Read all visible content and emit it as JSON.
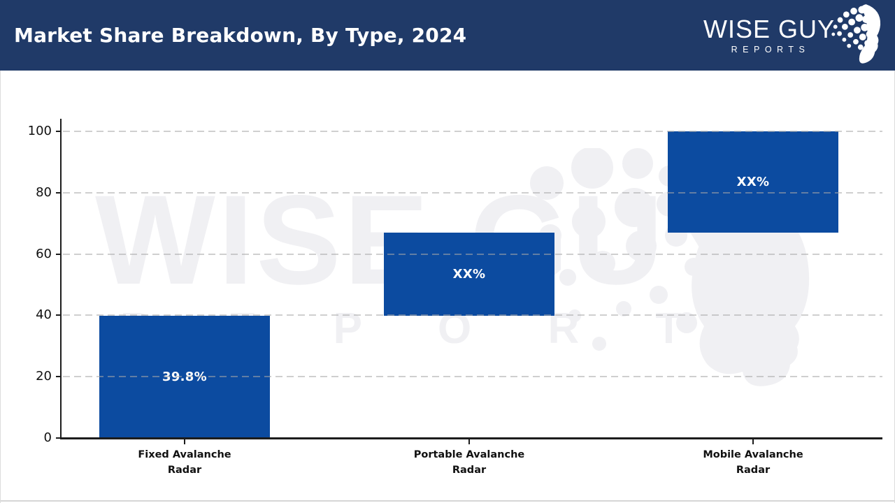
{
  "header": {
    "title": "Market Share Breakdown, By Type, 2024",
    "logo": {
      "brand_line1": "WISE GUY",
      "brand_line2": "REPORTS"
    }
  },
  "watermark": {
    "line1": "WISE GUY",
    "line2": "R E P O R T S"
  },
  "colors": {
    "header_bg": "#203A68",
    "bar_fill": "#0C4BA0",
    "bar_label_text": "#FFFFFF",
    "gridline": "#D8D8D8",
    "axis_line": "#1C1C1C",
    "tick_label_text": "#111111",
    "watermark": "#F0F0F3"
  },
  "chart_data": {
    "type": "bar",
    "subtype": "floating-segment-waterfall",
    "title": "Market Share Breakdown, By Type, 2024",
    "xlabel": "",
    "ylabel": "",
    "ylim": [
      0,
      100
    ],
    "yticks": [
      0,
      20,
      40,
      60,
      80,
      100
    ],
    "grid": "horizontal-dashed",
    "legend": "none",
    "categories": [
      "Fixed Avalanche Radar",
      "Portable Avalanche Radar",
      "Mobile Avalanche Radar"
    ],
    "segments": [
      {
        "category_lines": [
          "Fixed Avalanche",
          "Radar"
        ],
        "start": 0,
        "end": 39.8,
        "value_label": "39.8%"
      },
      {
        "category_lines": [
          "Portable Avalanche",
          "Radar"
        ],
        "start": 39.8,
        "end": 67,
        "value_label": "XX%"
      },
      {
        "category_lines": [
          "Mobile Avalanche",
          "Radar"
        ],
        "start": 67,
        "end": 100,
        "value_label": "XX%"
      }
    ]
  }
}
